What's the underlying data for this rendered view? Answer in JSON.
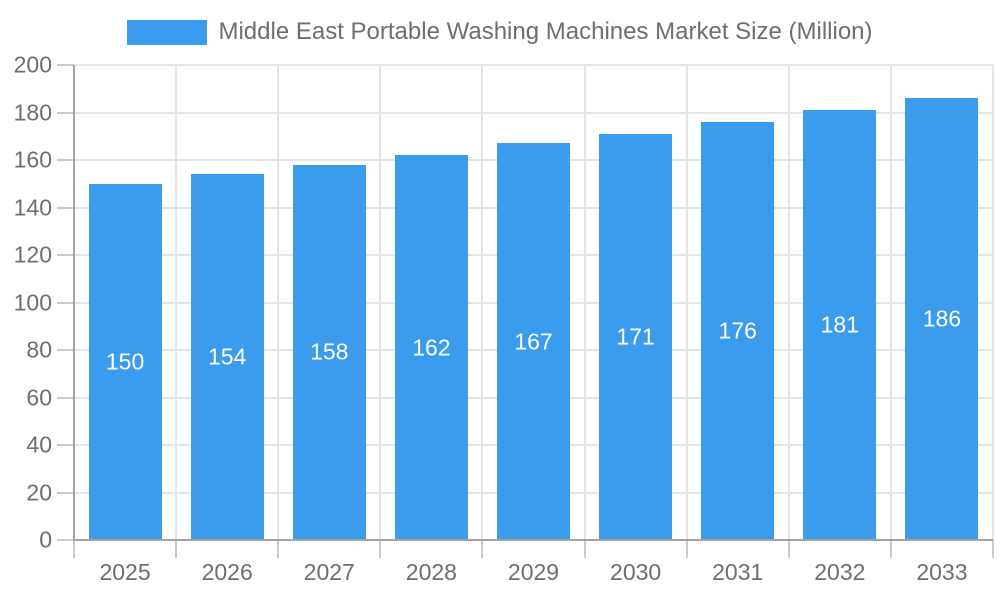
{
  "legend": {
    "label": "Middle East Portable Washing Machines Market Size (Million)"
  },
  "chart_data": {
    "type": "bar",
    "title": "Middle East Portable Washing Machines Market Size (Million)",
    "categories": [
      "2025",
      "2026",
      "2027",
      "2028",
      "2029",
      "2030",
      "2031",
      "2032",
      "2033"
    ],
    "series": [
      {
        "name": "Middle East Portable Washing Machines Market Size (Million)",
        "values": [
          150,
          154,
          158,
          162,
          167,
          171,
          176,
          181,
          186
        ]
      }
    ],
    "xlabel": "",
    "ylabel": "",
    "ylim": [
      0,
      200
    ],
    "ytick_step": 20,
    "grid": true,
    "legend_position": "top",
    "data_labels": "inside-center",
    "colors": {
      "bar": "#3b9bed",
      "bar_label": "#ffffff",
      "grid_line": "#e4e4e4",
      "axis_line": "#a3a3a3",
      "tick_mark": "#cbcbcb",
      "axis_text": "#6e6e6e",
      "background": "#ffffff"
    }
  }
}
